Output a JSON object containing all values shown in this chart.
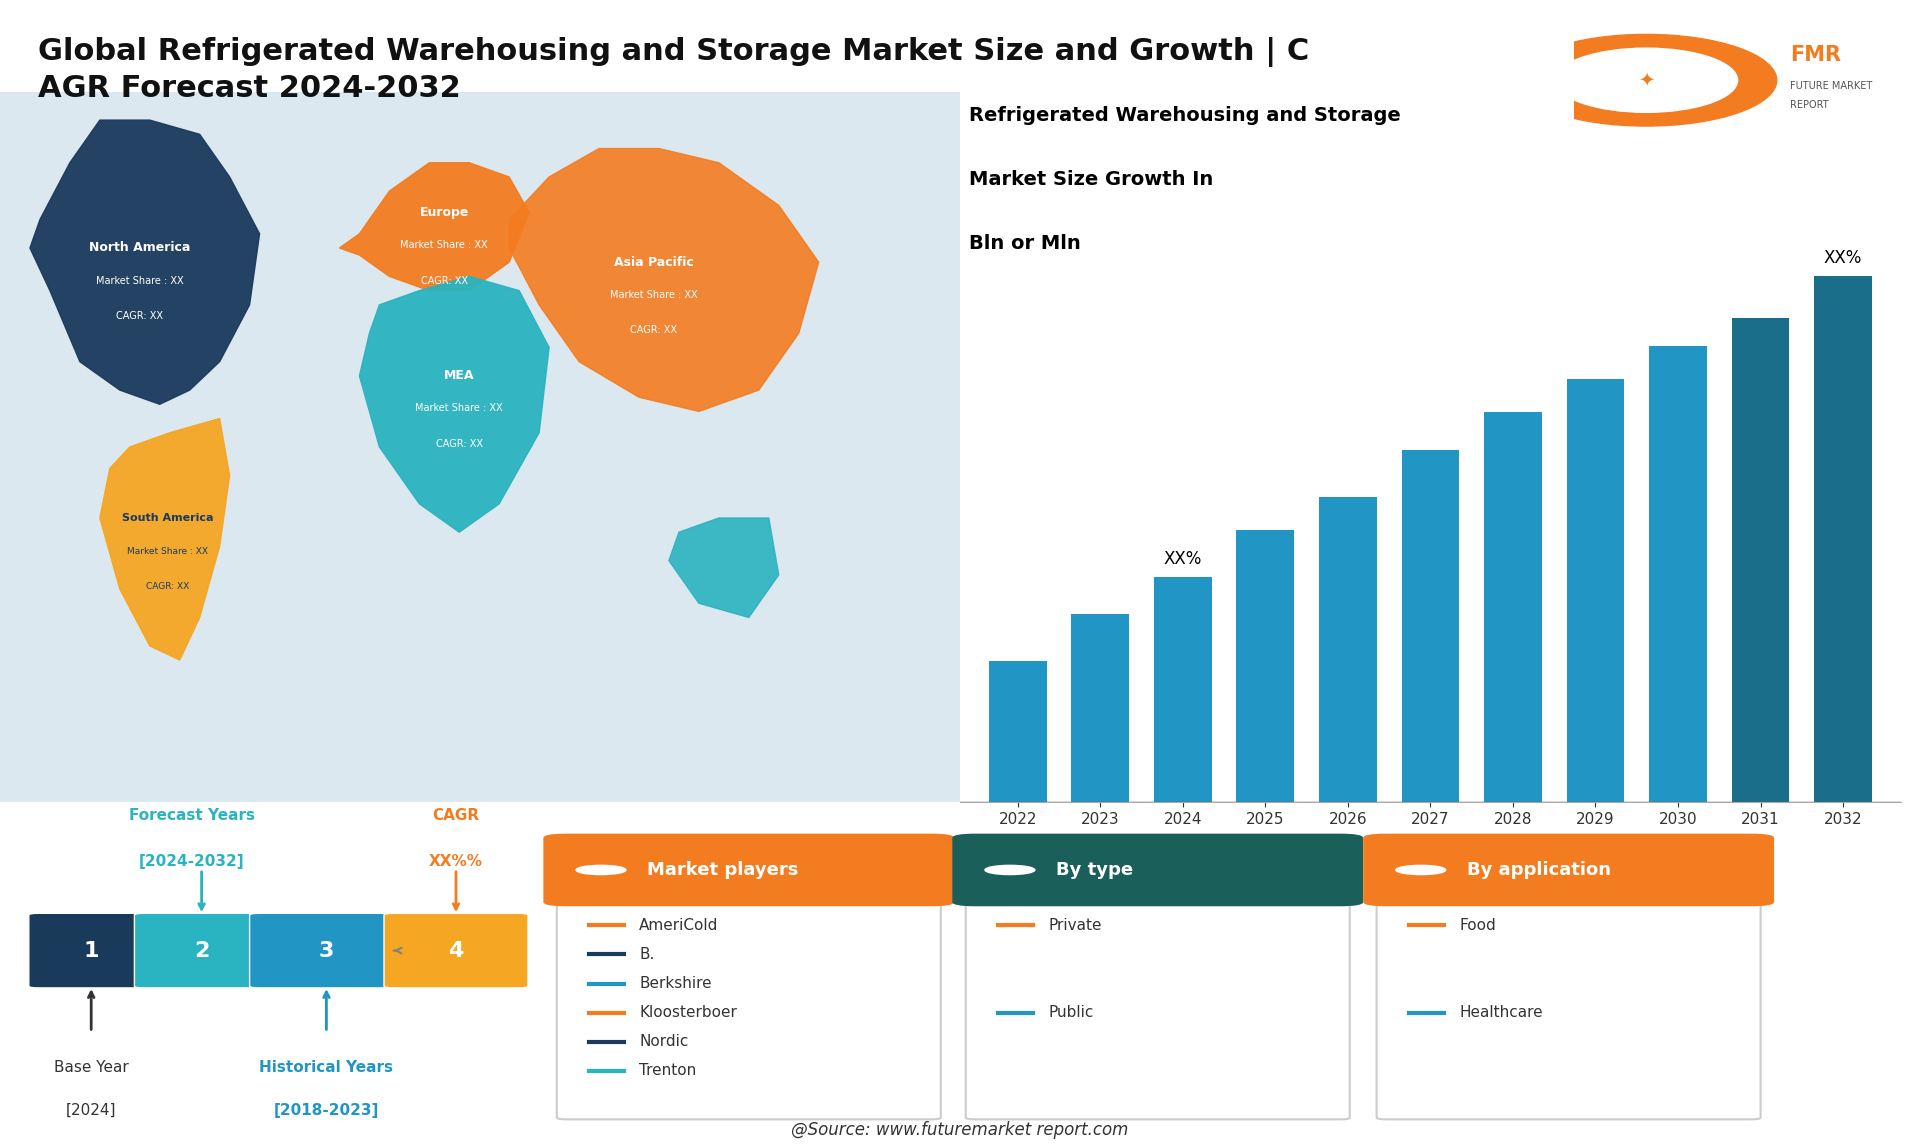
{
  "title_line1": "Global Refrigerated Warehousing and Storage Market Size and Growth | C",
  "title_line2": "AGR Forecast 2024-2032",
  "title_fontsize": 22,
  "bg_color": "#ffffff",
  "chart_title_line1": "Refrigerated Warehousing and Storage",
  "chart_title_line2": "Market Size Growth In",
  "chart_title_line3": "Bln or Mln",
  "bar_years": [
    "2022",
    "2023",
    "2024",
    "2025",
    "2026",
    "2027",
    "2028",
    "2029",
    "2030",
    "2031",
    "2032"
  ],
  "bar_values": [
    3,
    4,
    4.8,
    5.8,
    6.5,
    7.5,
    8.3,
    9.0,
    9.7,
    10.3,
    11.2
  ],
  "bar_color_light": "#2196c4",
  "bar_color_dark": "#1a6e8a",
  "forecast_color": "#2ab3c0",
  "cagr_color": "#f47c20",
  "historical_color": "#2196c4",
  "seg1_color": "#1a3a5c",
  "seg2_color": "#2ab3c0",
  "seg3_color": "#2196c4",
  "seg4_color": "#f5a623",
  "market_players_bg": "#f47c20",
  "market_players_text": "Market players",
  "market_players": [
    "AmeriCold",
    "B.",
    "Berkshire",
    "Kloosterboer",
    "Nordic",
    "Trenton"
  ],
  "mp_item_colors": [
    "#f47c20",
    "#1a3a5c",
    "#2196c4",
    "#f47c20",
    "#1a3a5c",
    "#2ab3c0"
  ],
  "by_type_bg": "#1a5f5a",
  "by_type_text": "By type",
  "by_types": [
    "Private",
    "Public"
  ],
  "bt_item_colors": [
    "#f47c20",
    "#2196c4"
  ],
  "by_app_bg": "#f47c20",
  "by_app_text": "By application",
  "by_apps": [
    "Food",
    "Healthcare"
  ],
  "ba_item_colors": [
    "#f47c20",
    "#2196c4"
  ],
  "source_text": "@Source: www.futuremarket report.com"
}
